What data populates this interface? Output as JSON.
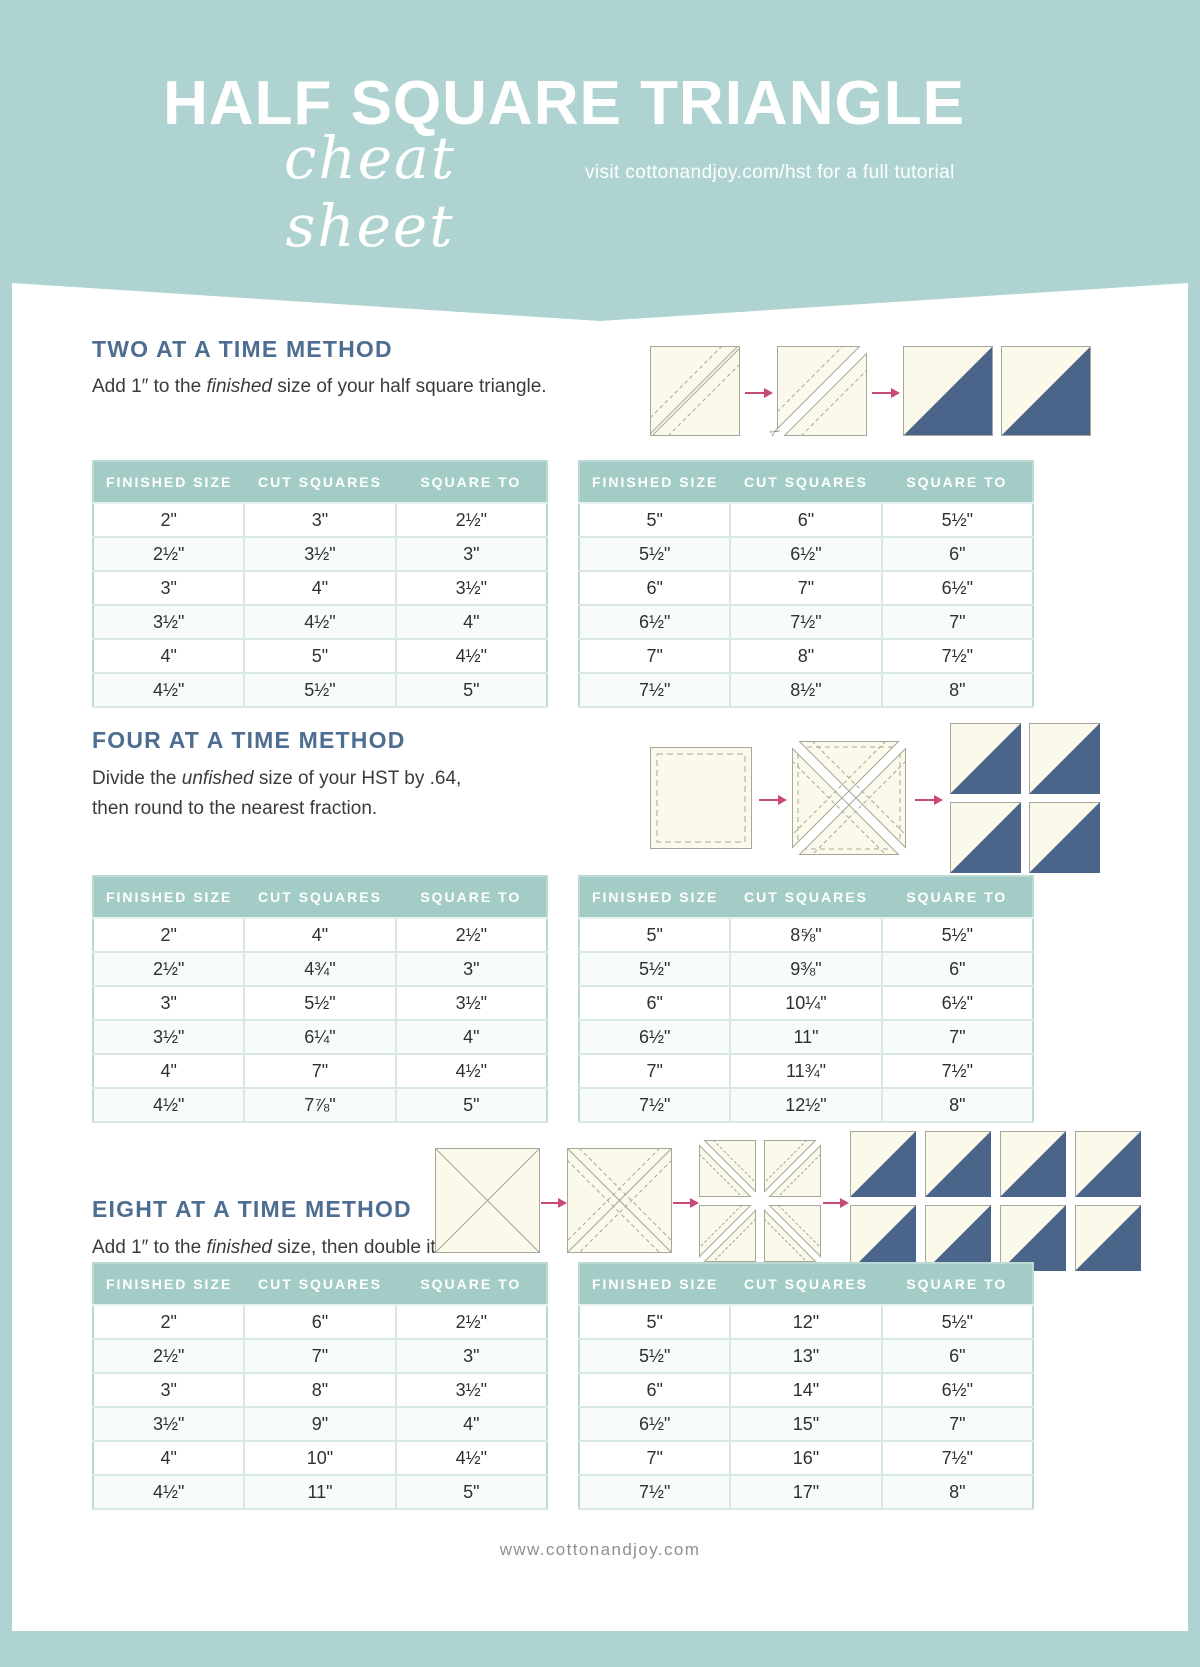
{
  "header": {
    "title": "HALF SQUARE TRIANGLE",
    "subtitle": "cheat sheet",
    "tagline": "visit cottonandjoy.com/hst for a full tutorial"
  },
  "footer": {
    "url": "www.cottonandjoy.com"
  },
  "table_headers": [
    "FINISHED SIZE",
    "CUT SQUARES",
    "SQUARE TO"
  ],
  "icons": {
    "scissors": "✂"
  },
  "colors": {
    "teal_background": "#afd3d1",
    "table_header_teal": "#a4ccc7",
    "navy_triangle": "#4b6489",
    "heading_blue": "#4d6e90",
    "arrow_pink": "#c84a78",
    "cream_square": "#fbf9e9",
    "square_border": "#a8a69b",
    "body_text": "#3b3b3b",
    "footer_gray": "#8d908e"
  },
  "sections": [
    {
      "title": "TWO AT A TIME METHOD",
      "description": {
        "pre": "Add 1″ to the ",
        "italic": "finished",
        "post": " size of your half square triangle.",
        "line2": ""
      },
      "tables": [
        {
          "rows": [
            [
              "2\"",
              "3\"",
              "2½\""
            ],
            [
              "2½\"",
              "3½\"",
              "3\""
            ],
            [
              "3\"",
              "4\"",
              "3½\""
            ],
            [
              "3½\"",
              "4½\"",
              "4\""
            ],
            [
              "4\"",
              "5\"",
              "4½\""
            ],
            [
              "4½\"",
              "5½\"",
              "5\""
            ]
          ]
        },
        {
          "rows": [
            [
              "5\"",
              "6\"",
              "5½\""
            ],
            [
              "5½\"",
              "6½\"",
              "6\""
            ],
            [
              "6\"",
              "7\"",
              "6½\""
            ],
            [
              "6½\"",
              "7½\"",
              "7\""
            ],
            [
              "7\"",
              "8\"",
              "7½\""
            ],
            [
              "7½\"",
              "8½\"",
              "8\""
            ]
          ]
        }
      ]
    },
    {
      "title": "FOUR AT A TIME METHOD",
      "description": {
        "pre": "Divide the ",
        "italic": "unfished",
        "post": " size of your HST by .64,",
        "line2": "then round to the nearest fraction."
      },
      "tables": [
        {
          "rows": [
            [
              "2\"",
              "4\"",
              "2½\""
            ],
            [
              "2½\"",
              "4¾\"",
              "3\""
            ],
            [
              "3\"",
              "5½\"",
              "3½\""
            ],
            [
              "3½\"",
              "6¼\"",
              "4\""
            ],
            [
              "4\"",
              "7\"",
              "4½\""
            ],
            [
              "4½\"",
              "7⅞\"",
              "5\""
            ]
          ]
        },
        {
          "rows": [
            [
              "5\"",
              "8⅝\"",
              "5½\""
            ],
            [
              "5½\"",
              "9⅜\"",
              "6\""
            ],
            [
              "6\"",
              "10¼\"",
              "6½\""
            ],
            [
              "6½\"",
              "11\"",
              "7\""
            ],
            [
              "7\"",
              "11¾\"",
              "7½\""
            ],
            [
              "7½\"",
              "12½\"",
              "8\""
            ]
          ]
        }
      ]
    },
    {
      "title": "EIGHT AT A TIME METHOD",
      "description": {
        "pre": "Add 1″ to the ",
        "italic": "finished",
        "post": " size, then double it.",
        "line2": ""
      },
      "tables": [
        {
          "rows": [
            [
              "2\"",
              "6\"",
              "2½\""
            ],
            [
              "2½\"",
              "7\"",
              "3\""
            ],
            [
              "3\"",
              "8\"",
              "3½\""
            ],
            [
              "3½\"",
              "9\"",
              "4\""
            ],
            [
              "4\"",
              "10\"",
              "4½\""
            ],
            [
              "4½\"",
              "11\"",
              "5\""
            ]
          ]
        },
        {
          "rows": [
            [
              "5\"",
              "12\"",
              "5½\""
            ],
            [
              "5½\"",
              "13\"",
              "6\""
            ],
            [
              "6\"",
              "14\"",
              "6½\""
            ],
            [
              "6½\"",
              "15\"",
              "7\""
            ],
            [
              "7\"",
              "16\"",
              "7½\""
            ],
            [
              "7½\"",
              "17\"",
              "8\""
            ]
          ]
        }
      ]
    }
  ]
}
